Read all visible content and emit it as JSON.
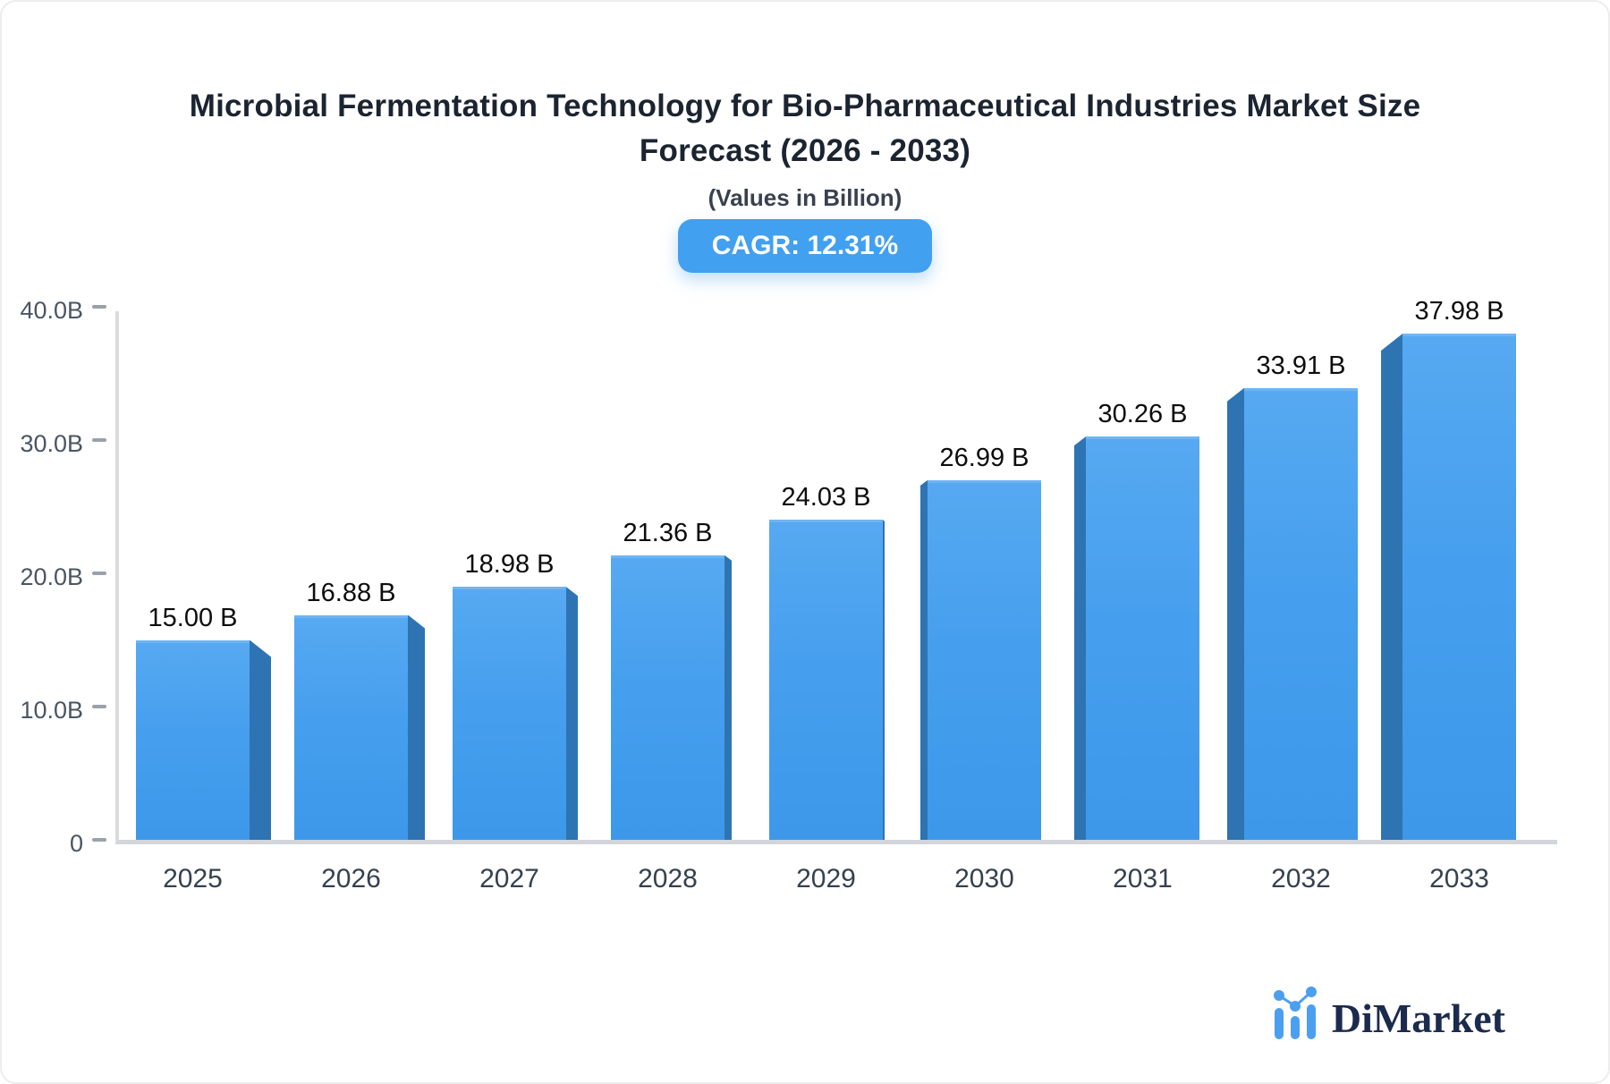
{
  "title": "Microbial Fermentation Technology for Bio-Pharmaceutical Industries Market Size Forecast (2026 - 2033)",
  "subtitle": "(Values in Billion)",
  "badge": {
    "label": "CAGR: 12.31%",
    "bg_color": "#42a0f0",
    "text_color": "#ffffff"
  },
  "chart_data": {
    "type": "bar",
    "title": "Microbial Fermentation Technology for Bio-Pharmaceutical Industries Market Size Forecast (2026 - 2033)",
    "subtitle": "(Values in Billion)",
    "categories": [
      "2025",
      "2026",
      "2027",
      "2028",
      "2029",
      "2030",
      "2031",
      "2032",
      "2033"
    ],
    "values": [
      15.0,
      16.88,
      18.98,
      21.36,
      24.03,
      26.99,
      30.26,
      33.91,
      37.98
    ],
    "value_labels": [
      "15.00 B",
      "16.88 B",
      "18.98 B",
      "21.36 B",
      "24.03 B",
      "26.99 B",
      "30.26 B",
      "33.91 B",
      "37.98 B"
    ],
    "unit": "Billion",
    "xlabel": "",
    "ylabel": "",
    "ylim": [
      0,
      40
    ],
    "y_ticks": [
      {
        "value": 0,
        "label": "0"
      },
      {
        "value": 10,
        "label": "10.0B"
      },
      {
        "value": 20,
        "label": "20.0B"
      },
      {
        "value": 30,
        "label": "30.0B"
      },
      {
        "value": 40,
        "label": "40.0B"
      }
    ],
    "grid": false,
    "legend": false,
    "bar_color_top": "#56a9f1",
    "bar_color_bottom": "#3d98ea",
    "bar_side_color": "#2e74b2",
    "axis_line_color": "#d5d8dc",
    "tick_label_color": "#4b5563"
  },
  "logo": {
    "text": "DiMarket",
    "icon": "mini-bar-line-chart",
    "icon_color": "#4b9ff0"
  }
}
